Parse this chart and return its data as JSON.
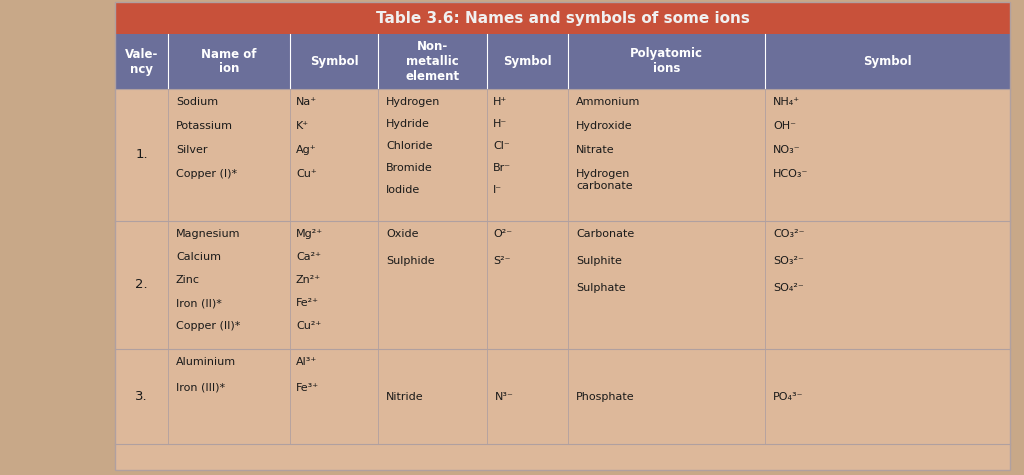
{
  "title": "Table 3.6: Names and symbols of some ions",
  "title_bg": "#c8513a",
  "title_color": "#f0f0f0",
  "header_bg": "#6b6f9a",
  "row_bg": "#ddb89a",
  "divider_color": "#b0a0a0",
  "outer_bg": "#c8a888",
  "text_color": "#1a1a1a",
  "header_text_color": "#ffffff",
  "col_headers": [
    "Vale-\nncy",
    "Name of\nion",
    "Symbol",
    "Non-\nmetallic\nelement",
    "Symbol",
    "Polyatomic\nions",
    "Symbol"
  ],
  "v1_names": [
    "Sodium",
    "Potassium",
    "Silver",
    "Copper (I)*"
  ],
  "v1_syms": [
    "Na⁺",
    "K⁺",
    "Ag⁺",
    "Cu⁺"
  ],
  "v1_nme": [
    "Hydrogen",
    "Hydride",
    "Chloride",
    "Bromide",
    "Iodide"
  ],
  "v1_nme_sym": [
    "H⁺",
    "H⁻",
    "Cl⁻",
    "Br⁻",
    "I⁻"
  ],
  "v1_poly": [
    "Ammonium",
    "Hydroxide",
    "Nitrate",
    "Hydrogen\ncarbonate"
  ],
  "v1_poly_sym": [
    "NH₄⁺",
    "OH⁻",
    "NO₃⁻",
    "HCO₃⁻"
  ],
  "v2_names": [
    "Magnesium",
    "Calcium",
    "Zinc",
    "Iron (II)*",
    "Copper (II)*"
  ],
  "v2_syms": [
    "Mg²⁺",
    "Ca²⁺",
    "Zn²⁺",
    "Fe²⁺",
    "Cu²⁺"
  ],
  "v2_nme": [
    "Oxide",
    "Sulphide"
  ],
  "v2_nme_sym": [
    "O²⁻",
    "S²⁻"
  ],
  "v2_poly": [
    "Carbonate",
    "Sulphite",
    "Sulphate"
  ],
  "v2_poly_sym": [
    "CO₃²⁻",
    "SO₃²⁻",
    "SO₄²⁻"
  ],
  "v3_names": [
    "Aluminium",
    "Iron (III)*"
  ],
  "v3_syms": [
    "Al³⁺",
    "Fe³⁺"
  ],
  "v3_nme": [
    "Nitride"
  ],
  "v3_nme_sym": [
    "N³⁻"
  ],
  "v3_poly": [
    "Phosphate"
  ],
  "v3_poly_sym": [
    "PO₄³⁻"
  ]
}
